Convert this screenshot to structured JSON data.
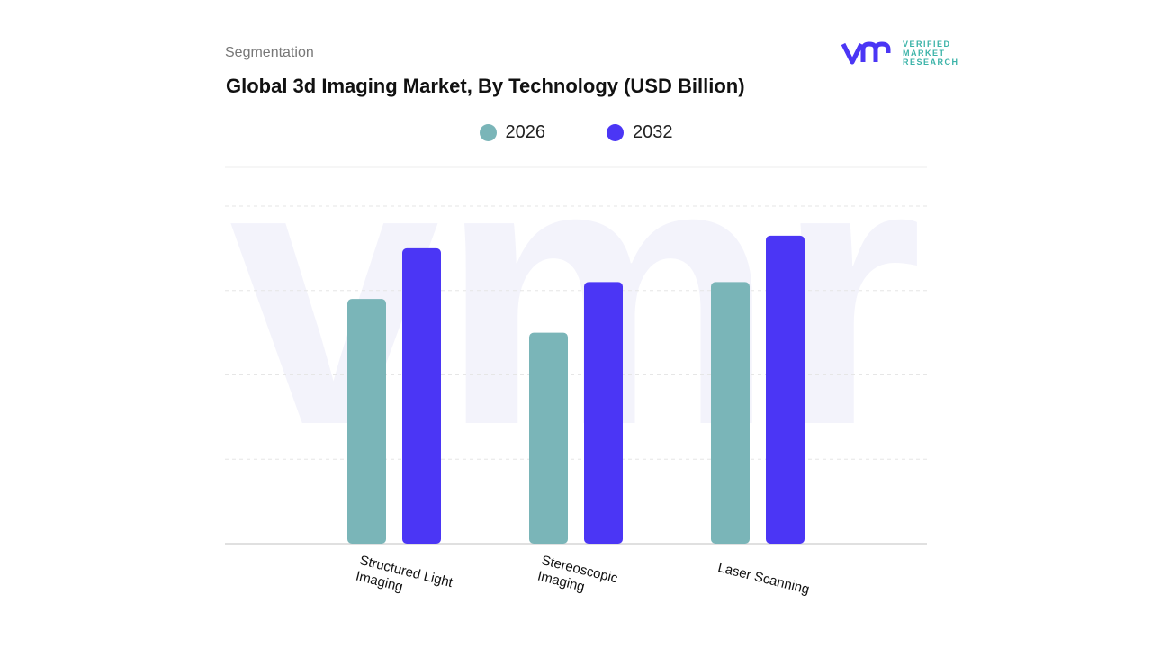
{
  "header": {
    "segment_label": "Segmentation",
    "logo_text": [
      "VERIFIED",
      "MARKET",
      "RESEARCH"
    ]
  },
  "colors": {
    "2026": "#7ab5b8",
    "2032": "#4b36f5",
    "logo": "#4b36f5"
  },
  "chart_data": {
    "type": "bar",
    "title": "Global 3d Imaging Market, By Technology (USD Billion)",
    "categories": [
      "Structured Light\nImaging",
      "Stereoscopic\nImaging",
      "Laser Scanning"
    ],
    "series": [
      {
        "name": "2026",
        "values": [
          2.9,
          2.5,
          3.1
        ]
      },
      {
        "name": "2032",
        "values": [
          3.5,
          3.1,
          3.65
        ]
      }
    ],
    "ylim": [
      0,
      4
    ],
    "grid": true,
    "legend": "top-center",
    "y_tick_labels_shown": false
  }
}
